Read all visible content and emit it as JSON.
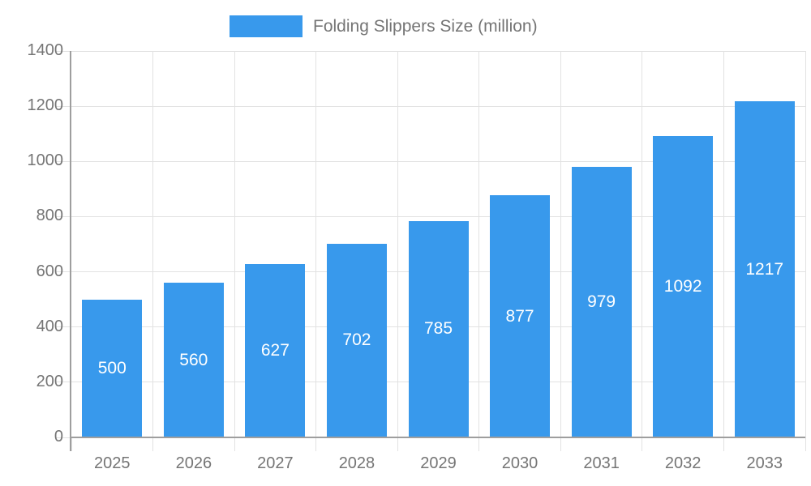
{
  "colors": {
    "bar": "#3899EC",
    "gridline": "#E2E2E2",
    "axis_line": "#9E9E9E",
    "axis_text": "#757575",
    "value_text": "#FFFFFF",
    "background": "#FFFFFF"
  },
  "chart_data": {
    "type": "bar",
    "title": "",
    "xlabel": "",
    "ylabel": "",
    "categories": [
      "2025",
      "2026",
      "2027",
      "2028",
      "2029",
      "2030",
      "2031",
      "2032",
      "2033"
    ],
    "series": [
      {
        "name": "Folding Slippers Size (million)",
        "values": [
          500,
          560,
          627,
          702,
          785,
          877,
          979,
          1092,
          1217
        ]
      }
    ],
    "ylim": [
      0,
      1400
    ],
    "yticks": [
      0,
      200,
      400,
      600,
      800,
      1000,
      1200,
      1400
    ],
    "grid": true,
    "legend_position": "top-center",
    "bar_color": "#3899EC",
    "value_labels_position": "center",
    "value_labels_color": "#FFFFFF"
  }
}
